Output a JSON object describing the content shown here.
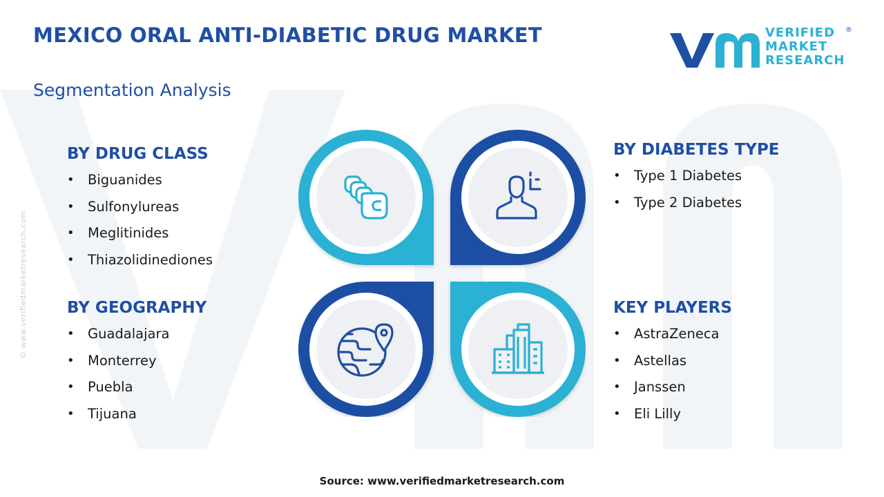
{
  "header": {
    "title": "MEXICO ORAL ANTI-DIABETIC DRUG MARKET",
    "subtitle": "Segmentation Analysis"
  },
  "logo": {
    "line1": "VERIFIED",
    "line2": "MARKET",
    "line3": "RESEARCH",
    "registered": "®"
  },
  "side_url": "© www.verifiedmarketresearch.com",
  "segments": {
    "drug_class": {
      "heading": "BY DRUG CLASS",
      "items": [
        "Biguanides",
        "Sulfonylureas",
        "Meglitinides",
        "Thiazolidinediones"
      ]
    },
    "diabetes_type": {
      "heading": "BY DIABETES TYPE",
      "items": [
        "Type 1 Diabetes",
        "Type 2 Diabetes"
      ]
    },
    "geography": {
      "heading": "BY GEOGRAPHY",
      "items": [
        "Guadalajara",
        "Monterrey",
        "Puebla",
        "Tijuana"
      ]
    },
    "key_players": {
      "heading": "KEY PLAYERS",
      "items": [
        "AstraZeneca",
        "Astellas",
        "Janssen",
        "Eli Lilly"
      ]
    }
  },
  "icons": {
    "top_left": "capsules-icon",
    "top_right": "user-profile-icon",
    "bottom_left": "globe-location-icon",
    "bottom_right": "city-buildings-icon"
  },
  "colors": {
    "primary_blue": "#1f4fa3",
    "accent_cyan": "#2bb1d3",
    "circle_fill": "#eef0f3"
  },
  "source": "Source: www.verifiedmarketresearch.com"
}
